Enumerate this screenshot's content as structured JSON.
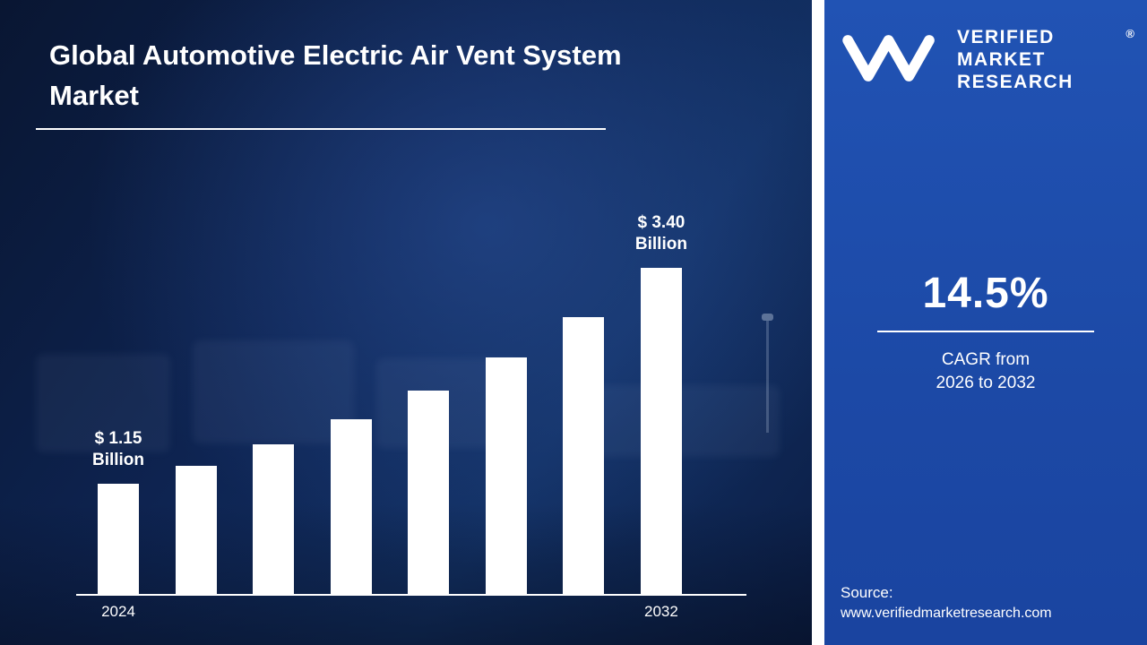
{
  "header": {
    "title": "Global Automotive Electric Air Vent System Market"
  },
  "chart_data": {
    "type": "bar",
    "title": "Global Automotive Electric Air Vent System Market",
    "value_unit": "Billion",
    "bar_color": "#ffffff",
    "background_color": "#0e2452",
    "values": [
      1.15,
      1.34,
      1.56,
      1.82,
      2.12,
      2.47,
      2.89,
      3.4
    ],
    "ylim": [
      0,
      3.55
    ],
    "x_tick_labels": {
      "0": "2024",
      "7": "2032"
    },
    "bar_labels": {
      "0": [
        "$ 1.15",
        "Billion"
      ],
      "7": [
        "$ 3.40",
        "Billion"
      ]
    },
    "grid": false,
    "legend": false
  },
  "right_panel": {
    "accent_color": "#1c49a6",
    "logo_text": [
      "VERIFIED",
      "MARKET",
      "RESEARCH"
    ],
    "registered": "®",
    "cagr_value": "14.5%",
    "cagr_caption_line1": "CAGR from",
    "cagr_caption_line2": "2026 to 2032",
    "source_label": "Source:",
    "source_url": "www.verifiedmarketresearch.com"
  }
}
